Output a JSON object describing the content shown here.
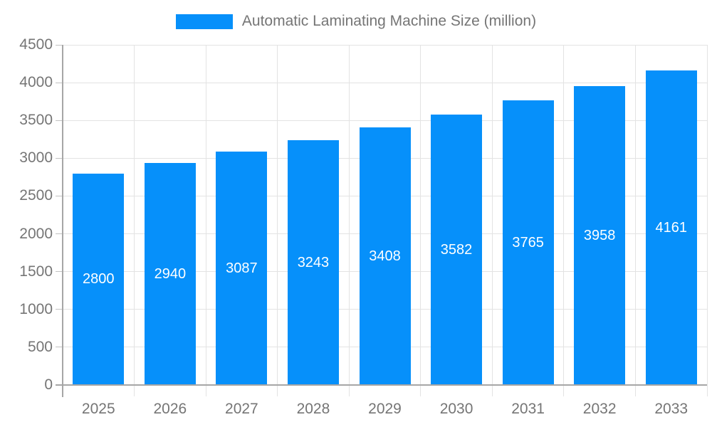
{
  "legend": {
    "label": "Automatic Laminating Machine Size (million)"
  },
  "chart_data": {
    "type": "bar",
    "title": "Automatic Laminating Machine Size (million)",
    "categories": [
      "2025",
      "2026",
      "2027",
      "2028",
      "2029",
      "2030",
      "2031",
      "2032",
      "2033"
    ],
    "values": [
      2800,
      2940,
      3087,
      3243,
      3408,
      3582,
      3765,
      3958,
      4161
    ],
    "xlabel": "",
    "ylabel": "",
    "ylim": [
      0,
      4500
    ],
    "yticks": [
      0,
      500,
      1000,
      1500,
      2000,
      2500,
      3000,
      3500,
      4000,
      4500
    ],
    "grid": true,
    "legend_position": "top",
    "bar_color": "#0690fa",
    "bar_label_color": "#ffffff",
    "axis_text_color": "#757575",
    "grid_color": "#e3e3e3",
    "tick_color": "#c2c2c2",
    "axis_line_color": "#a6a6a6",
    "background_color": "#ffffff"
  }
}
